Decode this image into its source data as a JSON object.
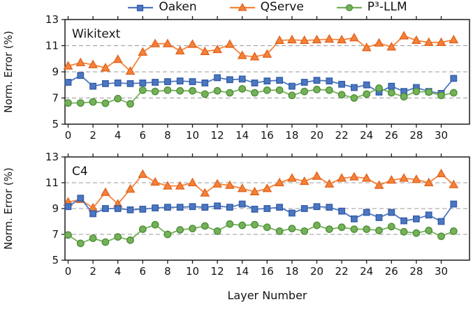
{
  "chart_data": {
    "type": "line",
    "x_label": "Layer Number",
    "y_label": "Norm. Error (%)",
    "x": [
      0,
      1,
      2,
      3,
      4,
      5,
      6,
      7,
      8,
      9,
      10,
      11,
      12,
      13,
      14,
      15,
      16,
      17,
      18,
      19,
      20,
      21,
      22,
      23,
      24,
      25,
      26,
      27,
      28,
      29,
      30,
      31
    ],
    "x_tick_labels": [
      0,
      2,
      4,
      6,
      8,
      10,
      12,
      14,
      16,
      18,
      20,
      22,
      24,
      26,
      28,
      30
    ],
    "y_ticks": [
      13,
      11,
      9,
      7,
      5
    ],
    "grid_lines": [
      7,
      9,
      11
    ],
    "ylim": [
      5,
      13
    ],
    "grid_style": "dashed horizontal gray",
    "legend_position": "top center",
    "grid_color": "#999999",
    "axis_color": "#1c1c1c",
    "subplots": [
      {
        "title": "Wikitext",
        "series": [
          {
            "name": "Oaken",
            "marker": "square",
            "color": "#4b76c0",
            "edge": "#345da8",
            "values": [
              8.2,
              8.72,
              7.9,
              8.1,
              8.15,
              8.1,
              8.15,
              8.2,
              8.25,
              8.3,
              8.25,
              8.15,
              8.55,
              8.4,
              8.45,
              8.15,
              8.3,
              8.35,
              7.9,
              8.2,
              8.35,
              8.3,
              8.05,
              7.8,
              8.0,
              7.45,
              7.9,
              7.5,
              7.8,
              7.5,
              7.35,
              8.5
            ]
          },
          {
            "name": "QServe",
            "marker": "triangle",
            "color": "#f58238",
            "edge": "#e2641f",
            "values": [
              9.45,
              9.7,
              9.55,
              9.3,
              9.95,
              9.05,
              10.5,
              11.15,
              11.15,
              10.6,
              11.1,
              10.55,
              10.7,
              11.1,
              10.25,
              10.15,
              10.35,
              11.4,
              11.45,
              11.4,
              11.45,
              11.5,
              11.45,
              11.6,
              10.85,
              11.2,
              10.9,
              11.75,
              11.4,
              11.25,
              11.25,
              11.45
            ]
          },
          {
            "name": "P³-LLM",
            "marker": "circle",
            "color": "#74b159",
            "edge": "#4f8f38",
            "values": [
              6.62,
              6.62,
              6.7,
              6.6,
              6.95,
              6.55,
              7.6,
              7.5,
              7.6,
              7.55,
              7.55,
              7.3,
              7.55,
              7.4,
              7.7,
              7.4,
              7.6,
              7.6,
              7.2,
              7.5,
              7.65,
              7.6,
              7.25,
              7.0,
              7.3,
              7.75,
              7.4,
              7.1,
              7.5,
              7.45,
              7.2,
              7.4
            ]
          }
        ]
      },
      {
        "title": "C4",
        "series": [
          {
            "name": "Oaken",
            "marker": "square",
            "color": "#4b76c0",
            "edge": "#345da8",
            "values": [
              9.15,
              9.8,
              8.6,
              9.0,
              9.0,
              8.9,
              8.95,
              9.05,
              9.1,
              9.1,
              9.15,
              9.1,
              9.2,
              9.1,
              9.35,
              8.95,
              9.0,
              9.1,
              8.65,
              9.0,
              9.15,
              9.1,
              8.8,
              8.2,
              8.7,
              8.3,
              8.7,
              8.05,
              8.2,
              8.5,
              8.0,
              9.35
            ]
          },
          {
            "name": "QServe",
            "marker": "triangle",
            "color": "#f58238",
            "edge": "#e2641f",
            "values": [
              9.5,
              9.7,
              9.05,
              10.25,
              9.35,
              10.5,
              11.65,
              11.05,
              10.75,
              10.75,
              11.0,
              10.2,
              10.9,
              10.8,
              10.55,
              10.3,
              10.55,
              11.0,
              11.35,
              11.1,
              11.5,
              10.9,
              11.35,
              11.45,
              11.35,
              10.8,
              11.2,
              11.35,
              11.25,
              11.0,
              11.7,
              10.85
            ]
          },
          {
            "name": "P³-LLM",
            "marker": "circle",
            "color": "#74b159",
            "edge": "#4f8f38",
            "values": [
              6.95,
              6.3,
              6.7,
              6.4,
              6.8,
              6.55,
              7.4,
              7.75,
              7.0,
              7.35,
              7.45,
              7.65,
              7.25,
              7.8,
              7.7,
              7.75,
              7.55,
              7.25,
              7.45,
              7.25,
              7.7,
              7.4,
              7.55,
              7.4,
              7.4,
              7.3,
              7.6,
              7.2,
              7.1,
              7.3,
              6.85,
              7.25
            ]
          }
        ]
      }
    ]
  }
}
